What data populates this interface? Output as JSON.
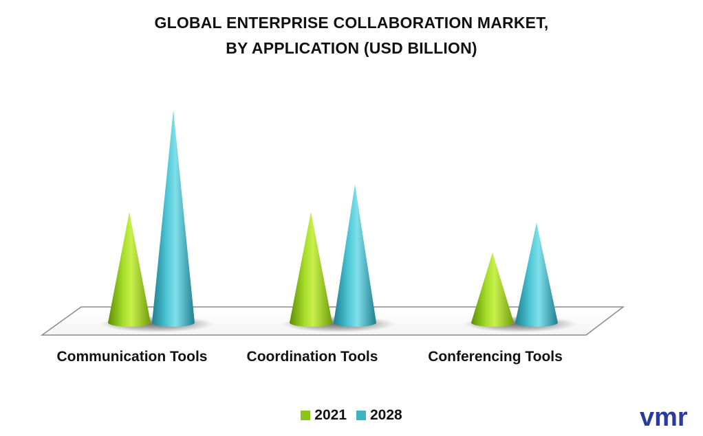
{
  "chart_data": {
    "type": "bar",
    "title": "GLOBAL ENTERPRISE COLLABORATION MARKET,",
    "subtitle": "BY APPLICATION (USD BILLION)",
    "categories": [
      "Communication Tools",
      "Coordination Tools",
      "Conferencing Tools"
    ],
    "series": [
      {
        "name": "2021",
        "values": [
          5.2,
          5.2,
          3.3
        ],
        "color": "#8cc51a"
      },
      {
        "name": "2028",
        "values": [
          10.0,
          6.5,
          4.7
        ],
        "color": "#3fb3c4"
      }
    ],
    "ylim": [
      0,
      10
    ],
    "grid": false,
    "legend_position": "bottom-center",
    "bar_shape": "cone-3d"
  },
  "logo": {
    "text": "vmr",
    "color": "#2a3b9c"
  }
}
